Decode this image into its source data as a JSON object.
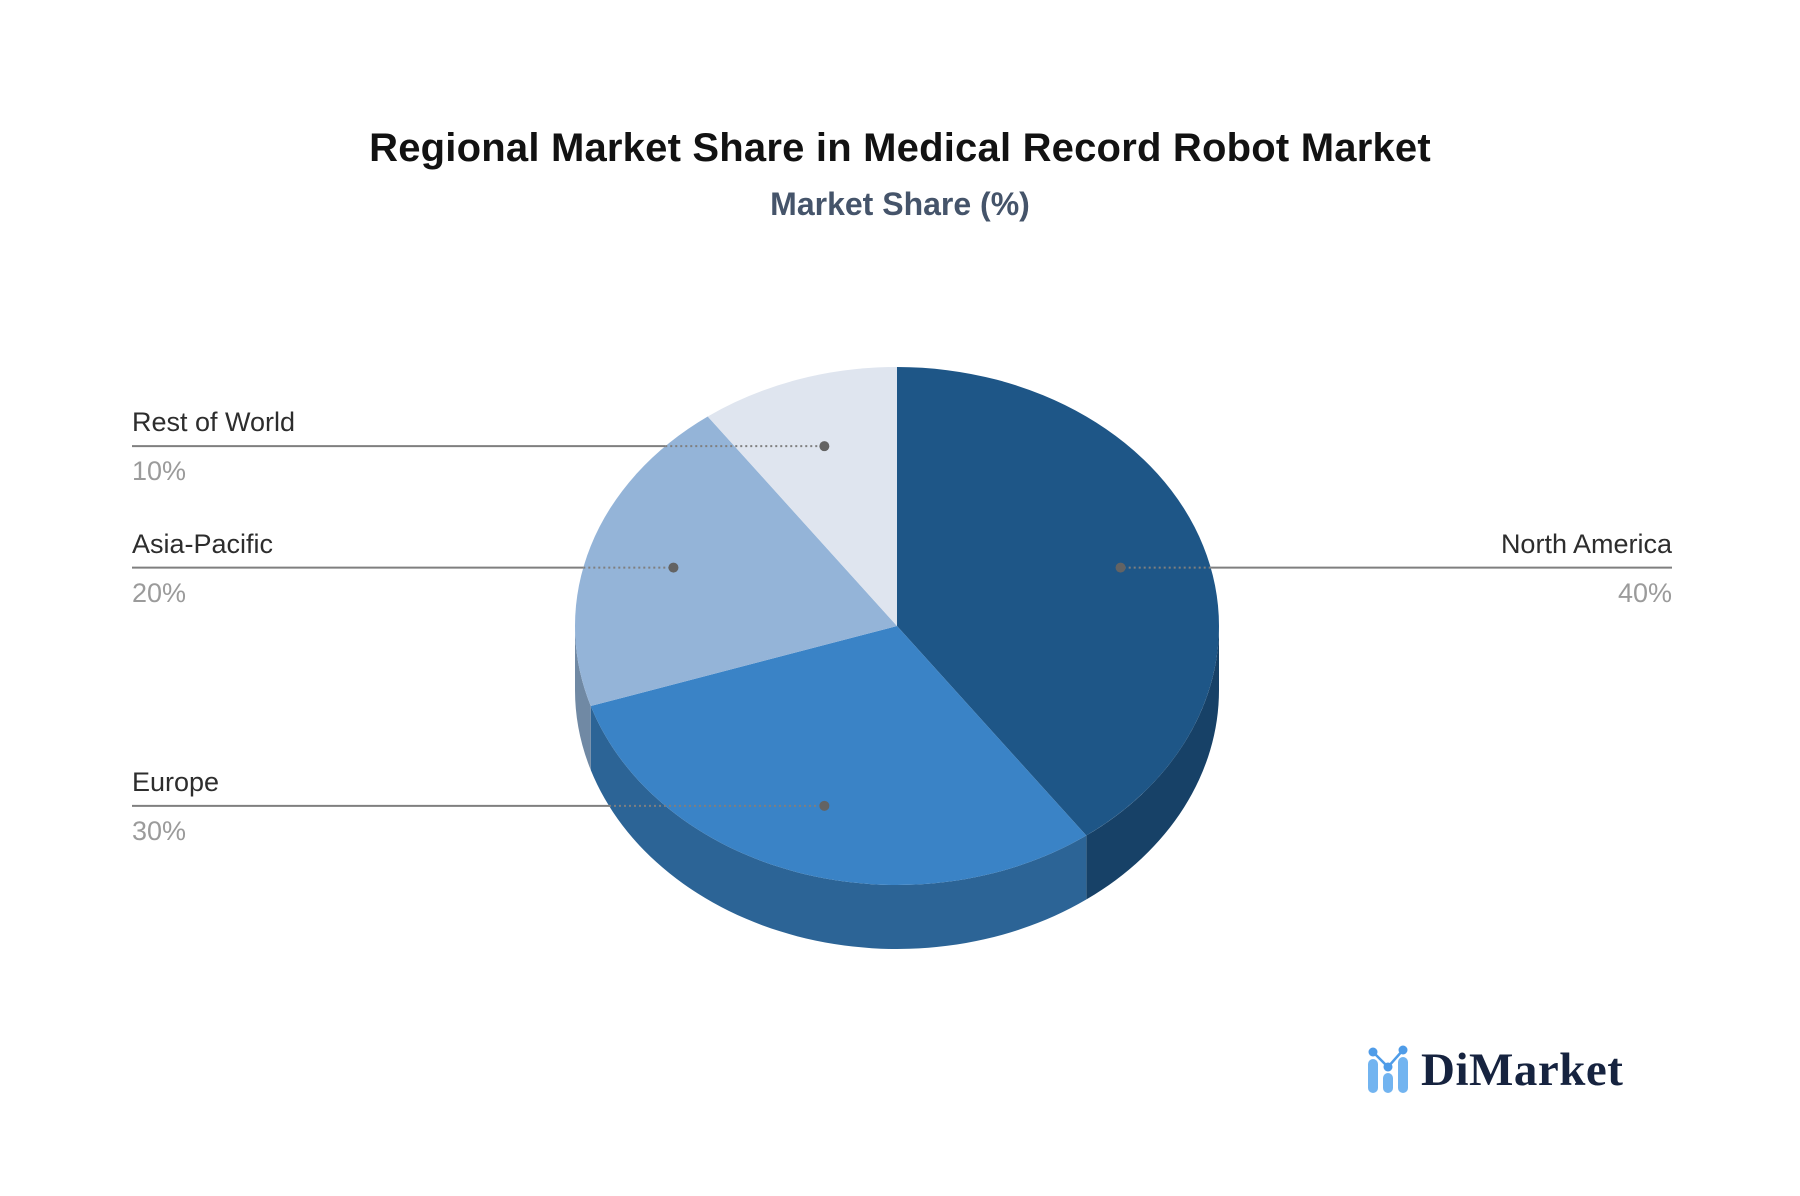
{
  "chart_data": {
    "type": "pie",
    "effect": "3d",
    "title": "Regional Market Share in Medical Record Robot Market",
    "subtitle": "Market Share (%)",
    "unit": "%",
    "start_angle_deg": 0,
    "direction": "clockwise",
    "labels_position": "outside-leader-lines",
    "legend": false,
    "categories": [
      "North America",
      "Europe",
      "Asia-Pacific",
      "Rest of World"
    ],
    "values": [
      40,
      30,
      20,
      10
    ],
    "slices": [
      {
        "label": "North America",
        "value": 40,
        "pct_label": "40%",
        "color": "#1e5687",
        "side": "right"
      },
      {
        "label": "Europe",
        "value": 30,
        "pct_label": "30%",
        "color": "#3a83c6",
        "side": "left"
      },
      {
        "label": "Asia-Pacific",
        "value": 20,
        "pct_label": "20%",
        "color": "#94b4d8",
        "side": "left"
      },
      {
        "label": "Rest of World",
        "value": 10,
        "pct_label": "10%",
        "color": "#dfe5ef",
        "side": "left"
      }
    ]
  },
  "colors": {
    "background": "#ffffff",
    "title": "#121212",
    "subtitle": "#45546a",
    "label_text": "#2d2d2d",
    "pct_text": "#9b9b9b",
    "leader_line": "#7f7f7f",
    "leader_dot": "#636363",
    "logo_navy": "#16233f",
    "logo_blue_bars": "#72b4f0",
    "logo_blue_dots": "#4f9ce8"
  },
  "branding": {
    "logo_text": "DiMarket",
    "logo_icon": "bar-chart-with-trend-dots-icon"
  }
}
